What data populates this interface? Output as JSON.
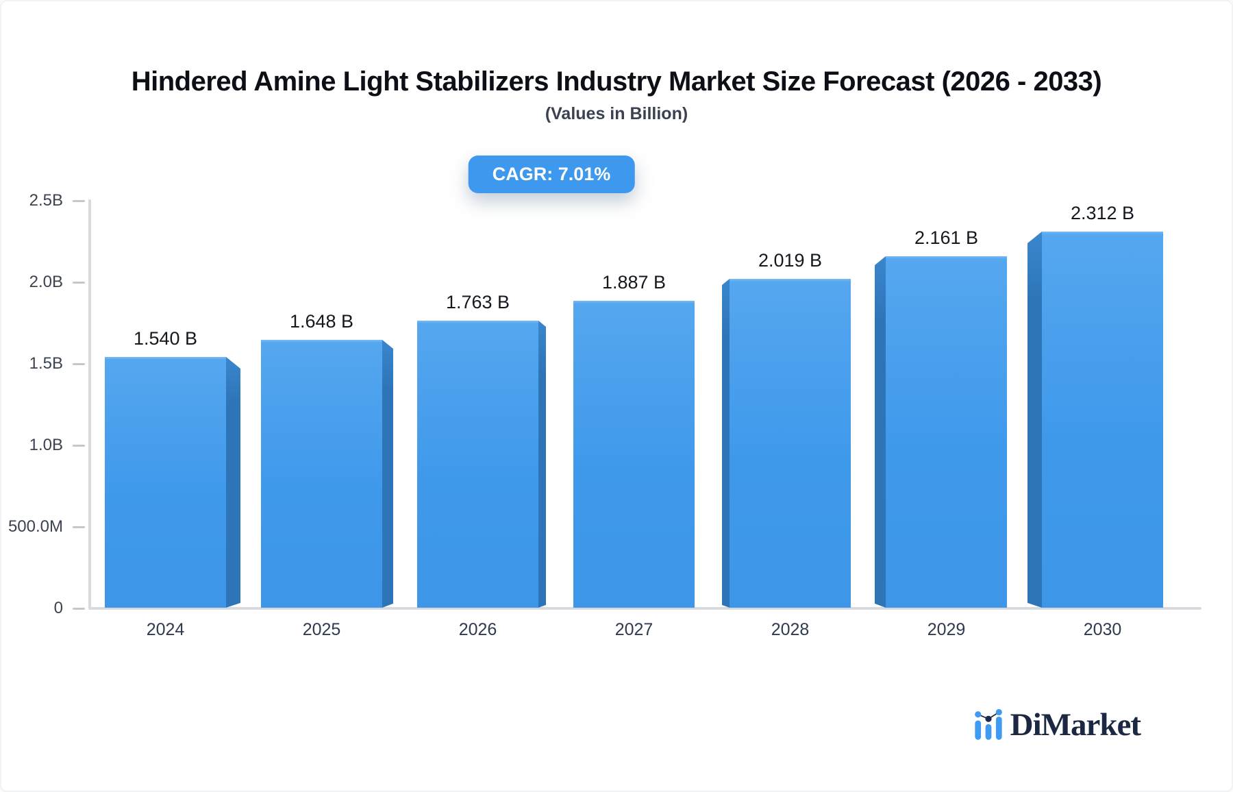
{
  "header": {
    "title": "Hindered Amine Light Stabilizers Industry Market Size Forecast (2026 - 2033)",
    "subtitle": "(Values in Billion)",
    "cagr_label": "CAGR: 7.01%"
  },
  "chart_data": {
    "type": "bar",
    "title": "Hindered Amine Light Stabilizers Industry Market Size Forecast (2026 - 2033)",
    "subtitle": "(Values in Billion)",
    "unit": "Billion USD",
    "cagr_percent": 7.01,
    "categories": [
      "2024",
      "2025",
      "2026",
      "2027",
      "2028",
      "2029",
      "2030"
    ],
    "values": [
      1.54,
      1.648,
      1.763,
      1.887,
      2.019,
      2.161,
      2.312
    ],
    "value_labels": [
      "1.540 B",
      "1.648 B",
      "1.763 B",
      "1.887 B",
      "2.019 B",
      "2.161 B",
      "2.312 B"
    ],
    "xlabel": "",
    "ylabel": "",
    "ylim": [
      0,
      2.5
    ],
    "yticks": [
      {
        "value": 0.0,
        "label": "0"
      },
      {
        "value": 0.5,
        "label": "500.0M"
      },
      {
        "value": 1.0,
        "label": "1.0B"
      },
      {
        "value": 1.5,
        "label": "1.5B"
      },
      {
        "value": 2.0,
        "label": "2.0B"
      },
      {
        "value": 2.5,
        "label": "2.5B"
      }
    ],
    "grid": false,
    "legend": false,
    "style": "3d-perspective-columns",
    "colors": {
      "bar_face_top": "#55a7ef",
      "bar_face": "#3f99eb",
      "bar_side": "#2e75b8",
      "accent_badge": "#3e98ed",
      "axis": "#d7dade",
      "tick_text": "#3c4350",
      "label_text": "#14181f"
    }
  },
  "footer": {
    "logo_text": "DiMarket",
    "logo_icon": "bar-chart-trend-icon"
  }
}
